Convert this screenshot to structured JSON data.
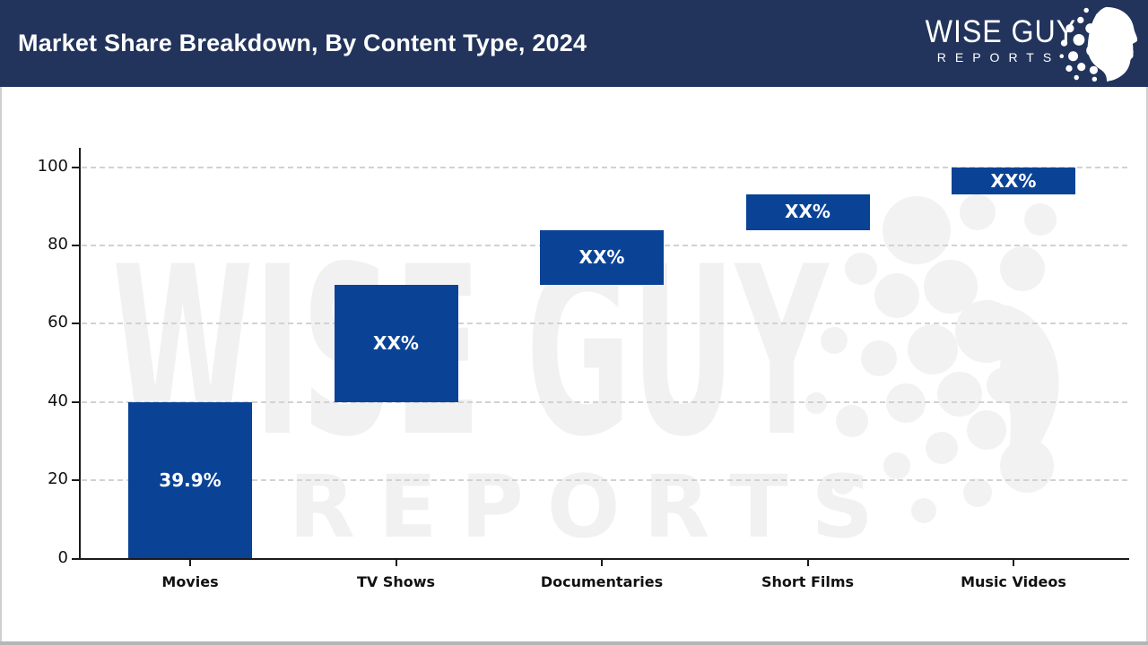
{
  "header": {
    "title": "Market Share Breakdown, By Content Type, 2024",
    "bg_color": "#22345c",
    "logo": {
      "line1": "WISE GUY",
      "line2": "REPORTS"
    }
  },
  "watermark": {
    "line1": "WISE GUY",
    "line2": "REPORTS"
  },
  "chart_data": {
    "type": "bar",
    "subtype": "waterfall",
    "title": "Market Share Breakdown, By Content Type, 2024",
    "categories": [
      "Movies",
      "TV Shows",
      "Documentaries",
      "Short Films",
      "Music Videos"
    ],
    "segments": [
      {
        "category": "Movies",
        "start": 0,
        "end": 39.9,
        "value": 39.9,
        "label": "39.9%"
      },
      {
        "category": "TV Shows",
        "start": 39.9,
        "end": 70,
        "value": 30.1,
        "label": "XX%"
      },
      {
        "category": "Documentaries",
        "start": 70,
        "end": 84,
        "value": 14,
        "label": "XX%"
      },
      {
        "category": "Short Films",
        "start": 84,
        "end": 93,
        "value": 9,
        "label": "XX%"
      },
      {
        "category": "Music Videos",
        "start": 93,
        "end": 100,
        "value": 7,
        "label": "XX%"
      }
    ],
    "yticks": [
      0,
      20,
      40,
      60,
      80,
      100
    ],
    "ylim": [
      0,
      105
    ],
    "xlabel": "",
    "ylabel": "",
    "grid": "horizontal dashed",
    "legend": "none",
    "bar_color": "#0a4396",
    "bar_label_color": "#ffffff",
    "grid_color": "#d2d2d2",
    "axis_color": "#1a1a1a"
  }
}
